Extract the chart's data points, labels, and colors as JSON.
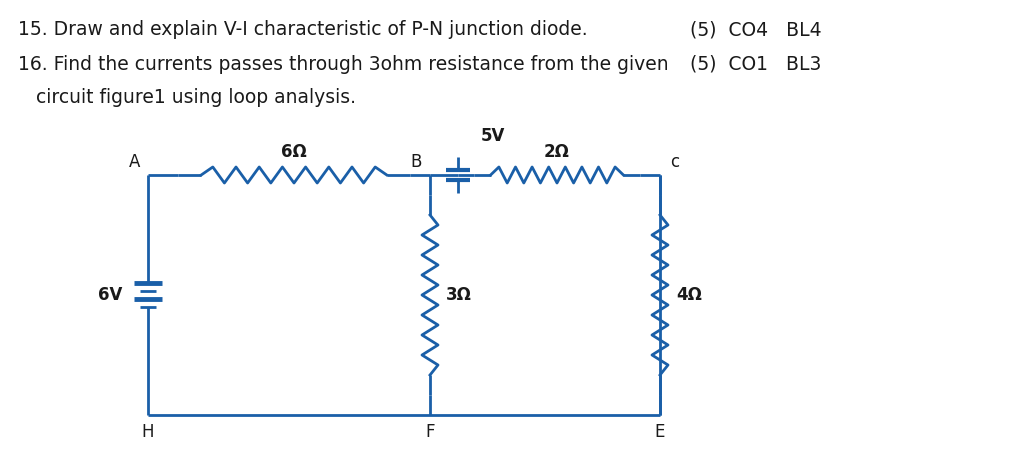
{
  "line15": "15. Draw and explain V-I characteristic of P-N junction diode.",
  "line16a": "16. Find the currents passes through 3ohm resistance from the given",
  "line16b": "    circuit figure1 using loop analysis.",
  "marks15": "(5)  CO4   BL4",
  "marks16": "(5)  CO1   BL3",
  "bg_color": "#ffffff",
  "text_color": "#1a1a1a",
  "circuit_color": "#1a5fa8",
  "R1_label": "6Ω",
  "R2_label": "2Ω",
  "R3_label": "3Ω",
  "R4_label": "4Ω",
  "voltage_label": "6V",
  "voltage_top_label": "5V",
  "font_size_text": 13.5,
  "font_size_circuit": 12
}
